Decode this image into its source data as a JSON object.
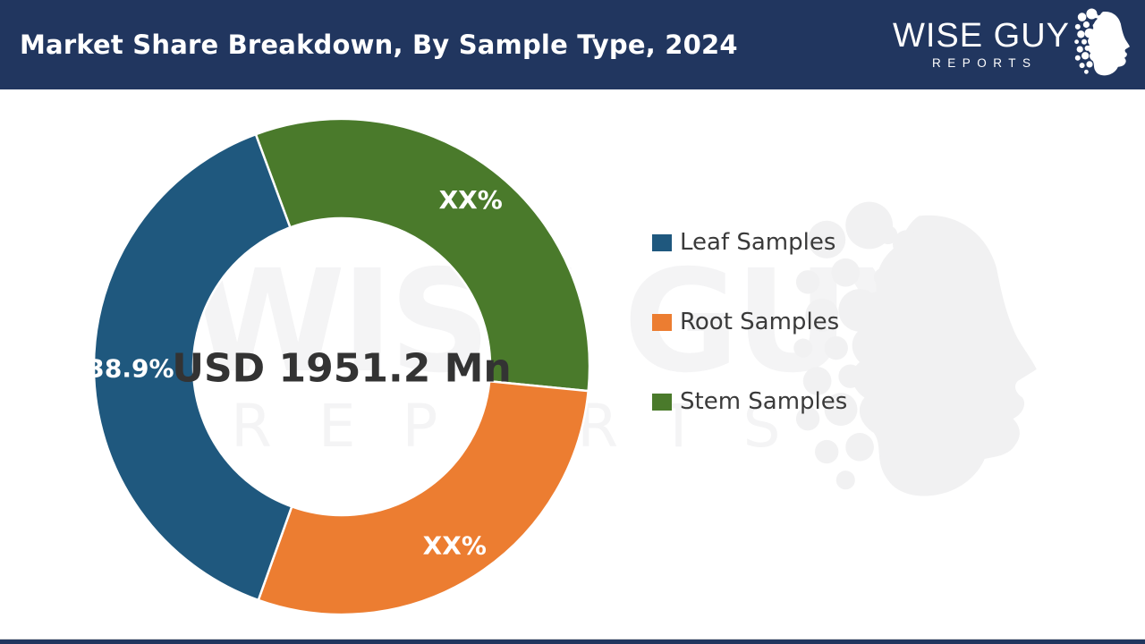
{
  "page": {
    "background": "#FFFFFF"
  },
  "header": {
    "title": "Market Share Breakdown, By Sample Type, 2024",
    "bg_color": "#21365F",
    "logo": {
      "wordmark": "WISE GUY",
      "subtext": "REPORTS"
    }
  },
  "watermark": {
    "wordmark": "WISE GUY",
    "subtext": "REPORTS"
  },
  "chart_data": {
    "type": "donut",
    "title": "Market Share Breakdown, By Sample Type, 2024",
    "center_label": "USD 1951.2 Mn",
    "start_angle_deg": -20.3,
    "donut_hole_ratio": 0.6,
    "segments": [
      {
        "name": "Stem Samples",
        "display_label": "XX%",
        "value_pct": 32.2,
        "color": "#4A7A2B"
      },
      {
        "name": "Root Samples",
        "display_label": "XX%",
        "value_pct": 28.9,
        "color": "#EC7D31"
      },
      {
        "name": "Leaf Samples",
        "display_label": "38.9%",
        "value_pct": 38.9,
        "color": "#1F587E"
      }
    ],
    "legend": {
      "position": "right",
      "items": [
        {
          "label": "Leaf Samples",
          "color": "#1F587E"
        },
        {
          "label": "Root Samples",
          "color": "#EC7D31"
        },
        {
          "label": "Stem Samples",
          "color": "#4A7A2B"
        }
      ]
    }
  },
  "footer": {
    "bar_color": "#21365F"
  }
}
